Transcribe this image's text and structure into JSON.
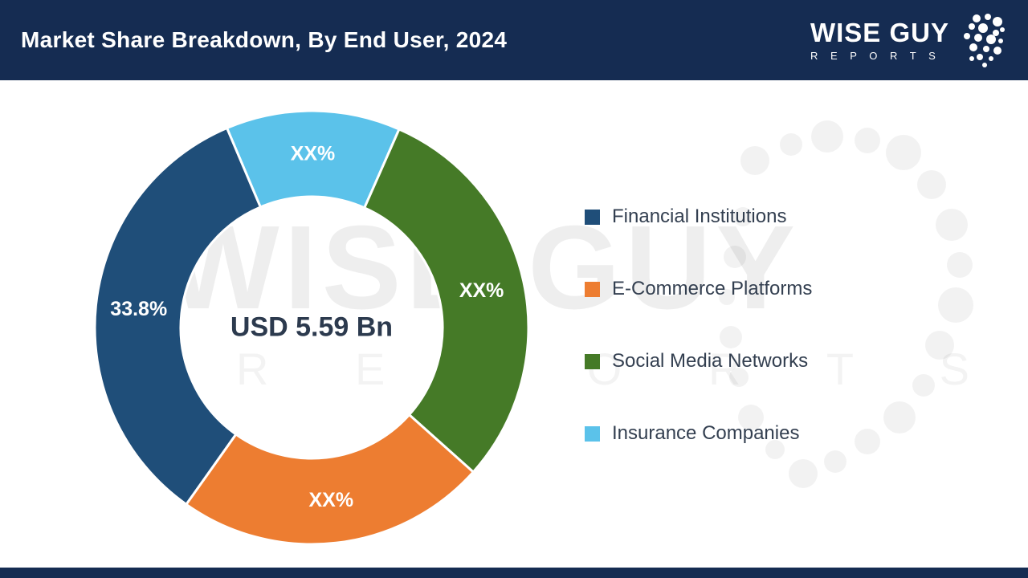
{
  "header": {
    "title": "Market Share Breakdown, By End User, 2024",
    "logo": {
      "name": "WISE GUY",
      "subname": "R E P O R T S"
    }
  },
  "watermark": {
    "line1": "WISE GUY",
    "line2": "R E P O R T S"
  },
  "chart_data": {
    "type": "pie",
    "subtype": "donut",
    "title": "Market Share Breakdown, By End User, 2024",
    "center_label": "USD 5.59 Bn",
    "start_angle_deg": -23,
    "legend_position": "right",
    "segments": [
      {
        "name": "Insurance Companies",
        "label": "XX%",
        "value": 13.0,
        "color": "#5bc2ea"
      },
      {
        "name": "Social Media Networks",
        "label": "XX%",
        "value": 30.0,
        "color": "#457a27"
      },
      {
        "name": "E-Commerce Platforms",
        "label": "XX%",
        "value": 23.2,
        "color": "#ed7d31"
      },
      {
        "name": "Financial Institutions",
        "label": "33.8%",
        "value": 33.8,
        "color": "#1f4e79"
      }
    ]
  },
  "legend": {
    "items": [
      {
        "label": "Financial Institutions",
        "color": "#1f4e79"
      },
      {
        "label": "E-Commerce Platforms",
        "color": "#ed7d31"
      },
      {
        "label": "Social Media Networks",
        "color": "#457a27"
      },
      {
        "label": "Insurance Companies",
        "color": "#5bc2ea"
      }
    ]
  }
}
